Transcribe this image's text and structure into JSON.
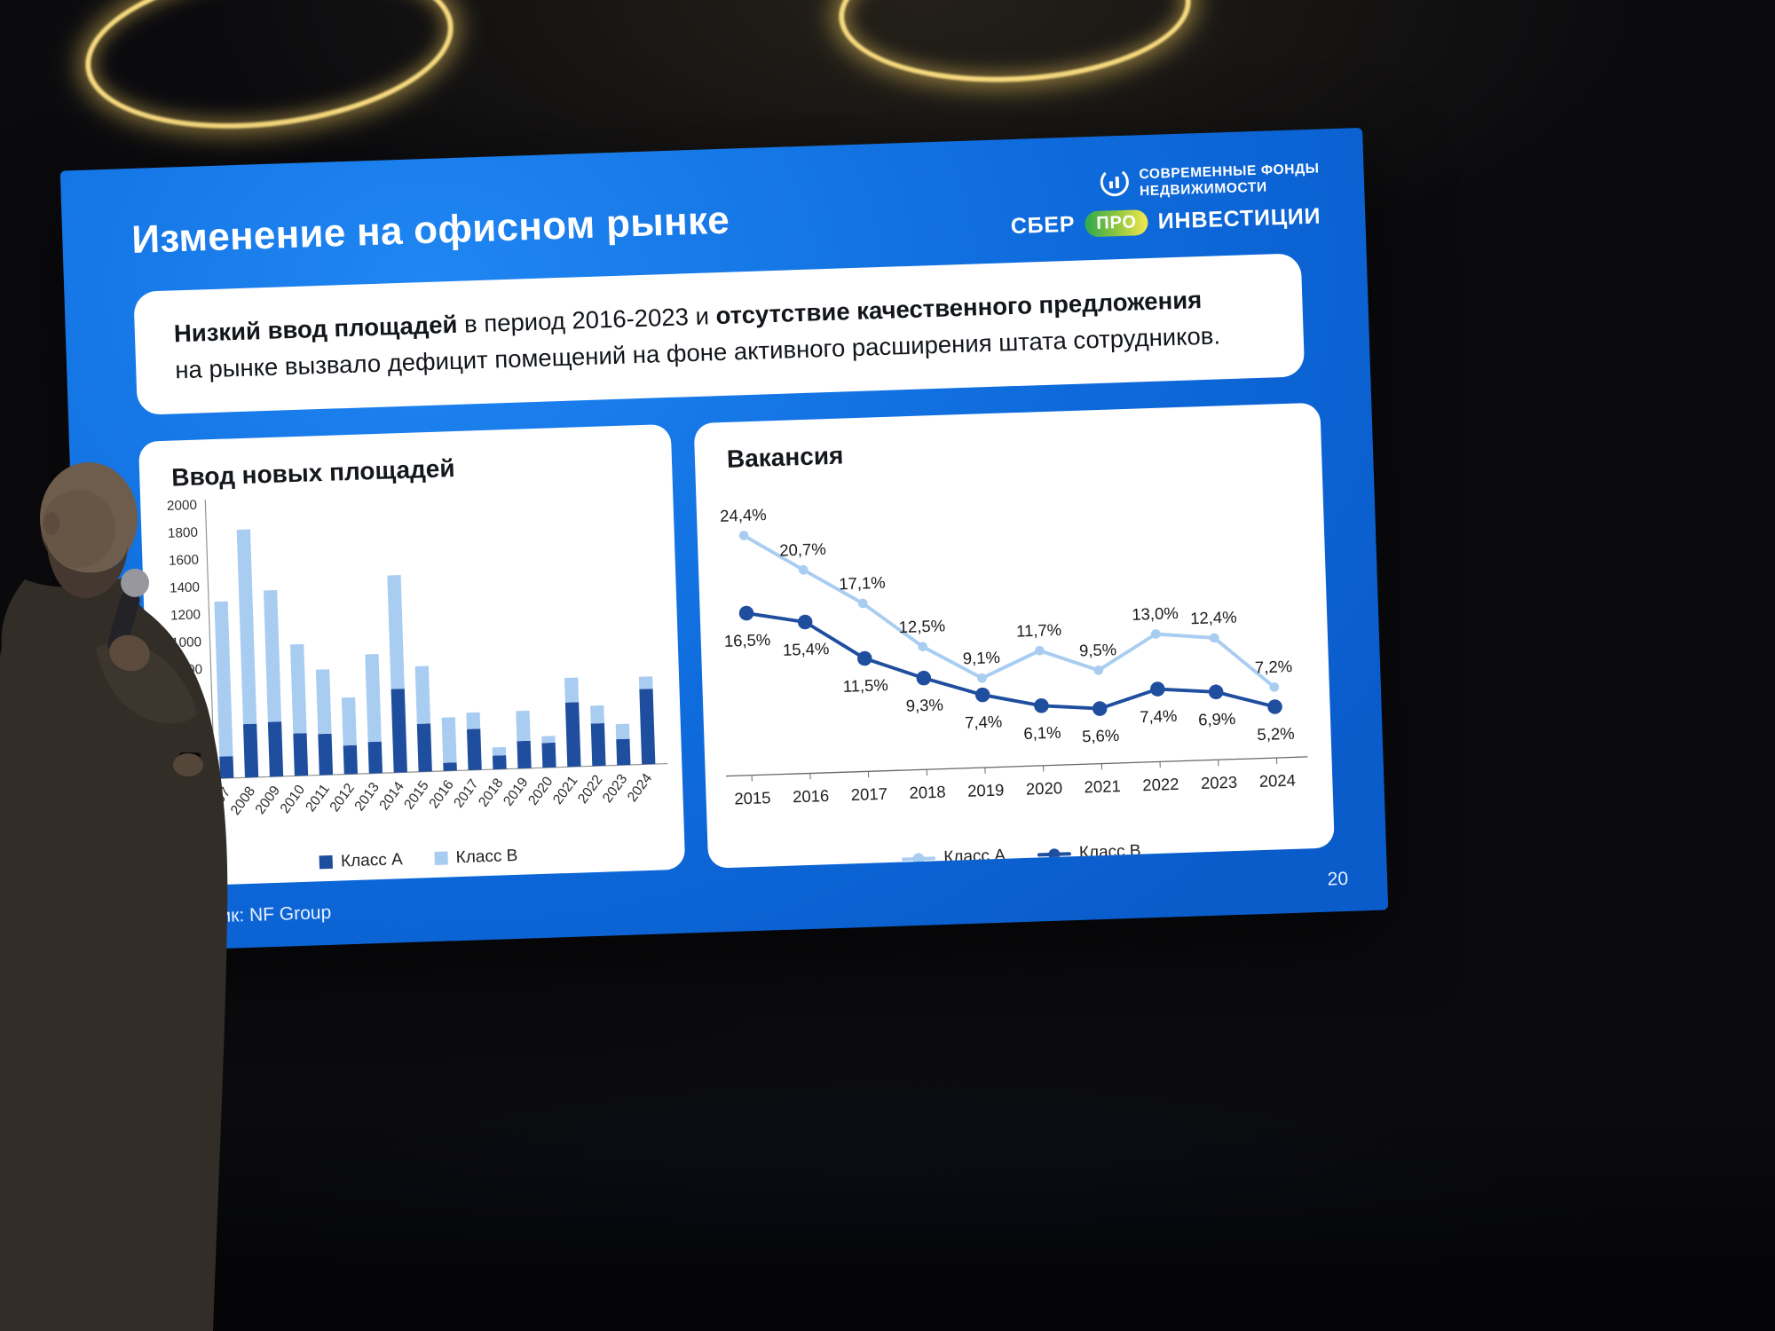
{
  "scene": {
    "source_note": "Источник: NF Group",
    "page_number": "20"
  },
  "slide": {
    "title": "Изменение на офисном рынке",
    "logo": {
      "brand_line1": "СОВРЕМЕННЫЕ ФОНДЫ",
      "brand_line2": "НЕДВИЖИМОСТИ",
      "sber": "СБЕР",
      "pro": "ПРО",
      "invest": "ИНВЕСТИЦИИ"
    },
    "intro": {
      "bold1": "Низкий ввод площадей",
      "text1": " в период 2016-2023 и ",
      "bold2": "отсутствие качественного предложения",
      "text2": "на рынке вызвало дефицит помещений на фоне активного расширения штата сотрудников."
    }
  },
  "chart_data": [
    {
      "type": "bar",
      "title": "Ввод новых площадей",
      "stacked": true,
      "categories": [
        "2007",
        "2008",
        "2009",
        "2010",
        "2011",
        "2012",
        "2013",
        "2014",
        "2015",
        "2016",
        "2017",
        "2018",
        "2019",
        "2020",
        "2021",
        "2022",
        "2023",
        "2024"
      ],
      "series": [
        {
          "name": "Класс А",
          "color": "#1f4e9f",
          "values": [
            160,
            390,
            400,
            310,
            300,
            210,
            230,
            610,
            350,
            60,
            300,
            100,
            200,
            180,
            470,
            310,
            190,
            550
          ]
        },
        {
          "name": "Класс B",
          "color": "#a9cdf1",
          "values": [
            1130,
            1420,
            960,
            650,
            470,
            350,
            640,
            830,
            420,
            330,
            120,
            60,
            220,
            50,
            180,
            130,
            110,
            90
          ]
        }
      ],
      "ylim": [
        0,
        2000
      ],
      "ytick_step": 200,
      "grid": false,
      "legend_position": "bottom"
    },
    {
      "type": "line",
      "title": "Вакансия",
      "x": [
        "2015",
        "2016",
        "2017",
        "2018",
        "2019",
        "2020",
        "2021",
        "2022",
        "2023",
        "2024"
      ],
      "series": [
        {
          "name": "Класс А",
          "color": "#a9cdf1",
          "values": [
            24.4,
            20.7,
            17.1,
            12.5,
            9.1,
            11.7,
            9.5,
            13.0,
            12.4,
            7.2
          ],
          "labels": [
            "24,4%",
            "20,7%",
            "17,1%",
            "12,5%",
            "9,1%",
            "11,7%",
            "9,5%",
            "13,0%",
            "12,4%",
            "7,2%"
          ],
          "label_side": "above"
        },
        {
          "name": "Класс B",
          "color": "#1f4e9f",
          "values": [
            16.5,
            15.4,
            11.5,
            9.3,
            7.4,
            6.1,
            5.6,
            7.4,
            6.9,
            5.2
          ],
          "labels": [
            "16,5%",
            "15,4%",
            "11,5%",
            "9,3%",
            "7,4%",
            "6,1%",
            "5,6%",
            "7,4%",
            "6,9%",
            "5,2%"
          ],
          "label_side": "below"
        }
      ],
      "ylim": [
        0,
        26
      ],
      "grid": false,
      "legend_position": "bottom"
    }
  ]
}
